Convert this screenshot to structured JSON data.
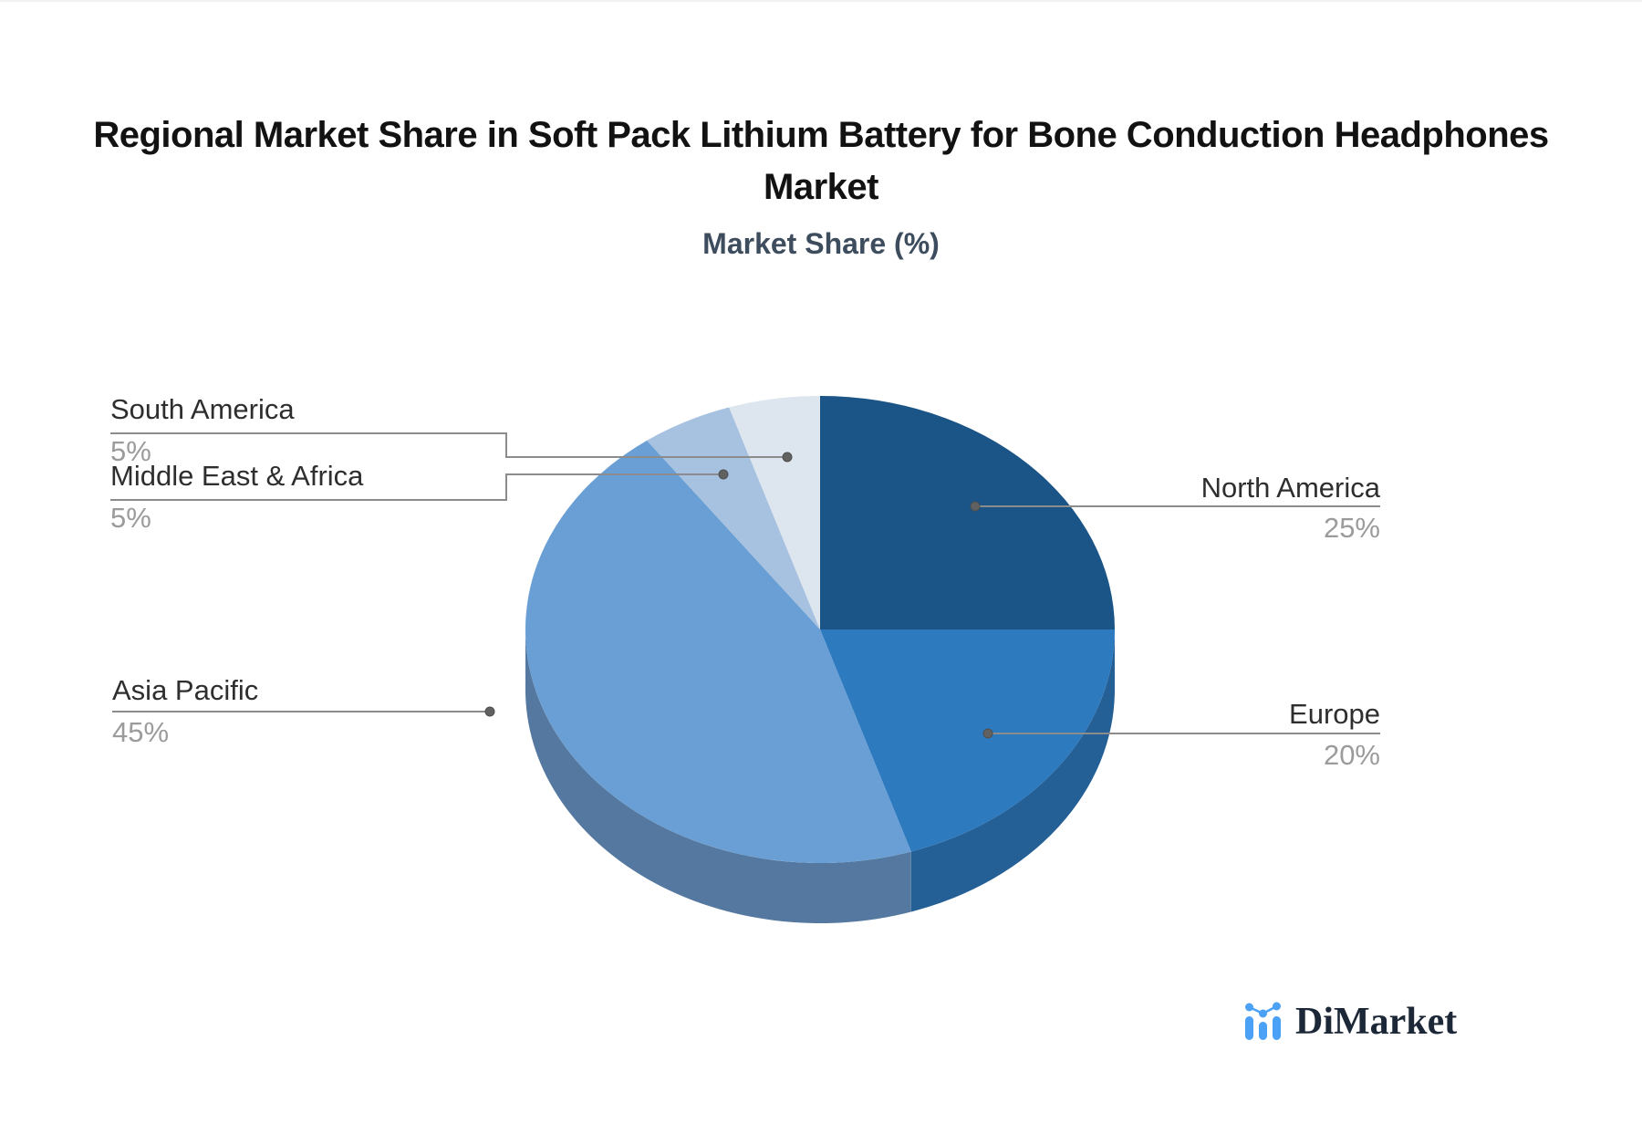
{
  "header": {
    "title_lines": [
      "Regional Market Share in Soft Pack Lithium Battery for Bone Conduction Headphones",
      "Market"
    ],
    "subtitle": "Market Share (%)"
  },
  "chart_data": {
    "type": "pie",
    "effect": "3d",
    "title": "Regional Market Share in Soft Pack Lithium Battery for Bone Conduction Headphones Market",
    "subtitle": "Market Share (%)",
    "unit": "%",
    "start_angle": "12-oclock",
    "direction": "clockwise",
    "legend_position": "callout-labels",
    "slices": [
      {
        "name": "North America",
        "value": 25,
        "pct_label": "25%",
        "color": "#1b5486",
        "side_color": "#153f66"
      },
      {
        "name": "Europe",
        "value": 20,
        "pct_label": "20%",
        "color": "#2e7abf",
        "side_color": "#245f96"
      },
      {
        "name": "Asia Pacific",
        "value": 45,
        "pct_label": "45%",
        "color": "#699fd4",
        "side_color": "#54789f"
      },
      {
        "name": "Middle East & Africa",
        "value": 5,
        "pct_label": "5%",
        "color": "#a7c2e0",
        "side_color": "#8199ae"
      },
      {
        "name": "South America",
        "value": 5,
        "pct_label": "5%",
        "color": "#dde5ee",
        "side_color": "#aeb5bd"
      }
    ]
  },
  "logo": {
    "text": "DiMarket",
    "icon": "bar-line-chart-icon",
    "icon_color": "#4aa1f6",
    "text_color": "#1c2737"
  }
}
